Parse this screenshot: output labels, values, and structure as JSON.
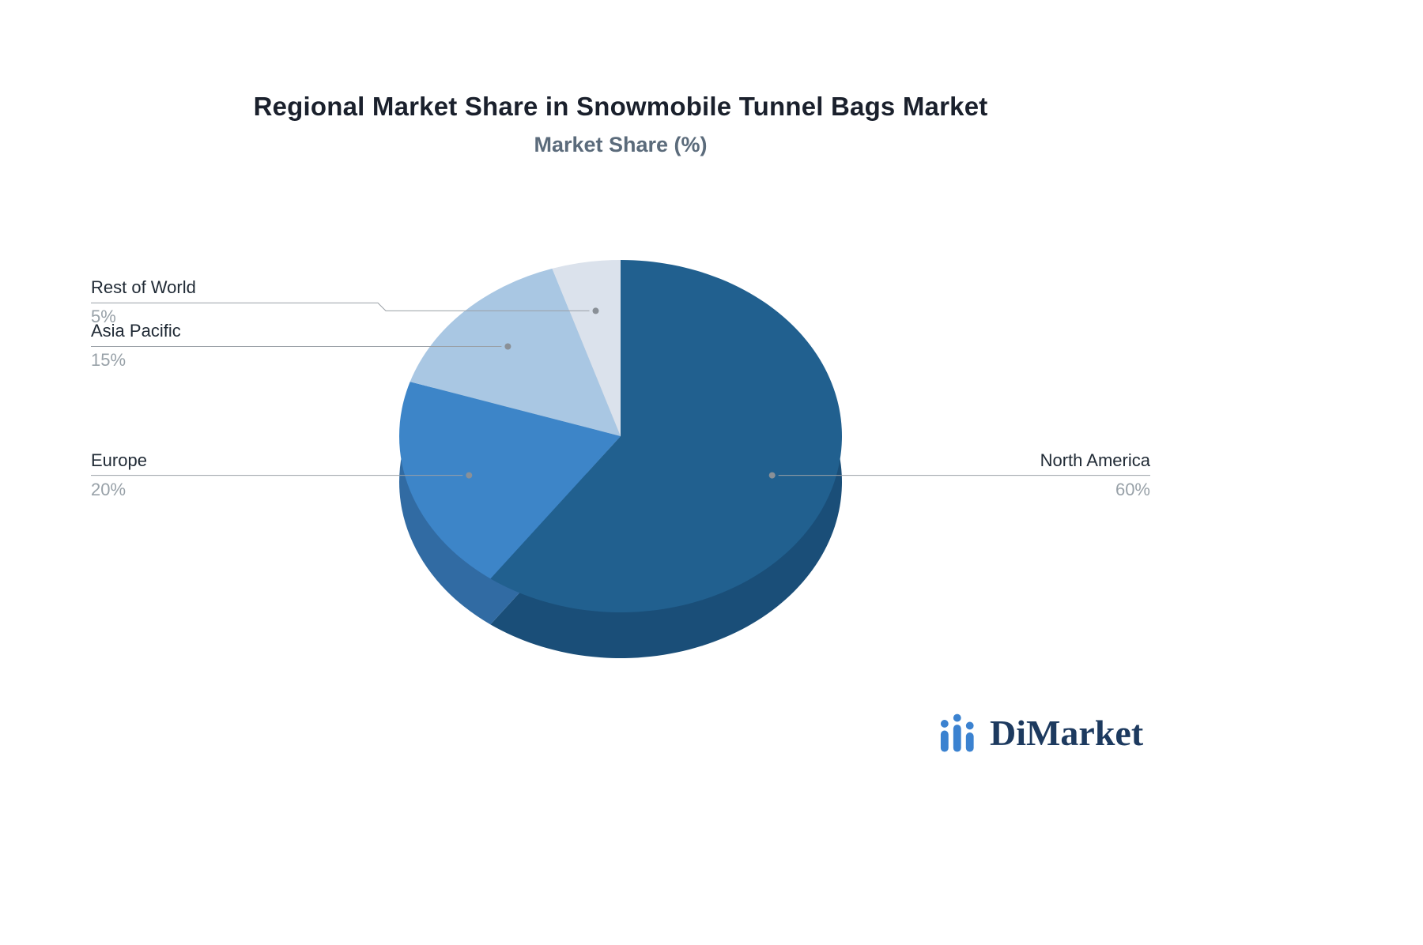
{
  "chart_data": {
    "type": "pie",
    "title": "Regional Market Share in Snowmobile Tunnel Bags Market",
    "subtitle": "Market Share (%)",
    "unit": "%",
    "direction": "clockwise",
    "start_angle_deg": 0,
    "style_3d": true,
    "legend_position": "none",
    "labels_style": "outside with leader lines, name above line, percent below in gray",
    "slices": [
      {
        "label": "North America",
        "value": 60,
        "pct_label": "60%",
        "color": "#21608f",
        "color_dark": "#1a4e78",
        "label_side": "right"
      },
      {
        "label": "Europe",
        "value": 20,
        "pct_label": "20%",
        "color": "#3d85c8",
        "color_dark": "#316ba3",
        "label_side": "left"
      },
      {
        "label": "Asia Pacific",
        "value": 15,
        "pct_label": "15%",
        "color": "#a9c7e3",
        "color_dark": "#8cabc9",
        "label_side": "left"
      },
      {
        "label": "Rest of World",
        "value": 5,
        "pct_label": "5%",
        "color": "#dbe2ec",
        "color_dark": "#bcc6d4",
        "label_side": "left"
      }
    ]
  },
  "logo": {
    "text": "DiMarket",
    "icon": "bar-chart-with-dots-icon",
    "icon_color": "#3b82d0",
    "text_color": "#1d3a5f"
  },
  "colors": {
    "background": "#ffffff",
    "leader_line": "#9aa0a6",
    "leader_dot": "#8a9097",
    "label_name": "#212b36",
    "label_pct": "#98a1a8",
    "title": "#1a202c",
    "subtitle": "#5b6b7b"
  }
}
